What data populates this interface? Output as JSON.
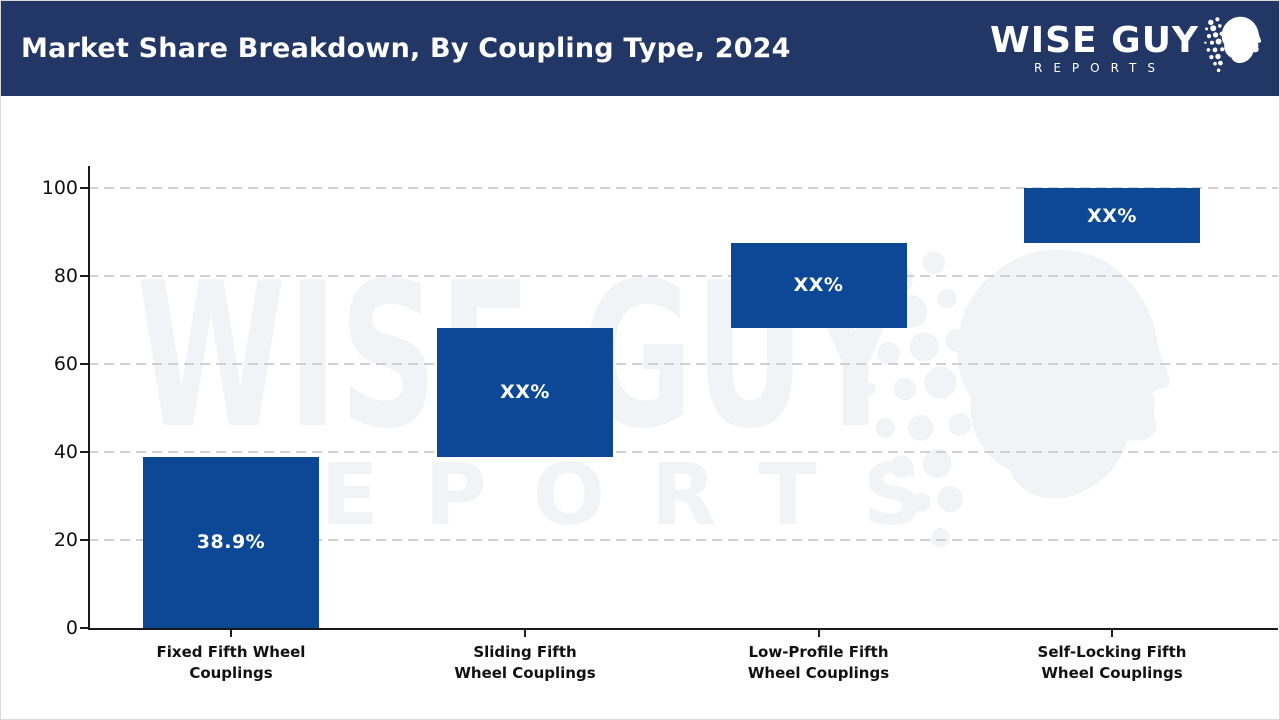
{
  "header": {
    "title": "Market Share Breakdown, By Coupling Type, 2024",
    "logo": {
      "brand_line1": "WISE GUY",
      "brand_line2": "REPORTS"
    }
  },
  "watermark": {
    "line1": "WISE GUY",
    "line2": "REPORTS"
  },
  "colors": {
    "header_bg": "#223765",
    "bar_fill": "#0d4896",
    "bar_label_text": "#ffffff",
    "grid_line": "#d0d0d0",
    "axis_line": "#1a1a1a",
    "tick_label_text": "#111111",
    "watermark_fill": "#f2f3f6",
    "page_border": "#d9d9d9"
  },
  "chart_data": {
    "type": "bar",
    "variant": "waterfall",
    "title": "Market Share Breakdown, By Coupling Type, 2024",
    "categories": [
      "Fixed Fifth Wheel Couplings",
      "Sliding Fifth Wheel Couplings",
      "Low-Profile Fifth Wheel Couplings",
      "Self-Locking Fifth Wheel Couplings"
    ],
    "category_label_lines": [
      [
        "Fixed Fifth Wheel",
        "Couplings"
      ],
      [
        "Sliding Fifth",
        "Wheel Couplings"
      ],
      [
        "Low-Profile Fifth",
        "Wheel Couplings"
      ],
      [
        "Self-Locking Fifth",
        "Wheel Couplings"
      ]
    ],
    "series": [
      {
        "name": "Market share (%)",
        "segments": [
          {
            "category": "Fixed Fifth Wheel Couplings",
            "start": 0,
            "end": 38.9,
            "label": "38.9%"
          },
          {
            "category": "Sliding Fifth Wheel Couplings",
            "start": 38.9,
            "end": 68.2,
            "label": "XX%"
          },
          {
            "category": "Low-Profile Fifth Wheel Couplings",
            "start": 68.2,
            "end": 87.5,
            "label": "XX%"
          },
          {
            "category": "Self-Locking Fifth Wheel Couplings",
            "start": 87.5,
            "end": 100,
            "label": "XX%"
          }
        ]
      }
    ],
    "ylim": [
      0,
      100
    ],
    "yticks": [
      0,
      20,
      40,
      60,
      80,
      100
    ],
    "xlabel": "",
    "ylabel": "",
    "grid": "horizontal-dashed",
    "legend": "none"
  }
}
